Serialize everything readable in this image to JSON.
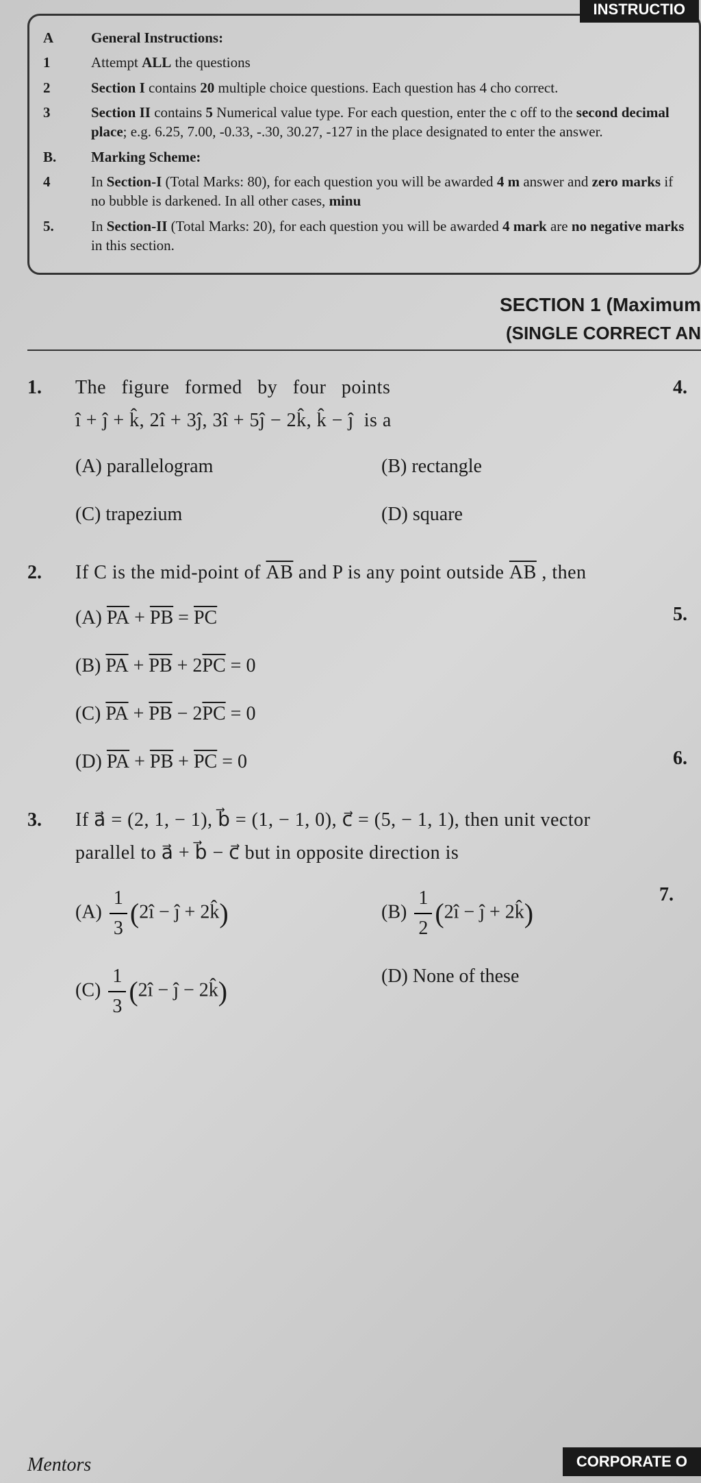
{
  "header": {
    "badge": "INSTRUCTIO"
  },
  "instructions": {
    "rows": [
      {
        "label": "A",
        "html": "<span class='bold'>General Instructions:</span>"
      },
      {
        "label": "1",
        "html": "Attempt <span class='bold'>ALL</span> the questions"
      },
      {
        "label": "2",
        "html": "<span class='bold'>Section I</span> contains <span class='bold'>20</span> multiple choice questions. Each question has 4 cho correct."
      },
      {
        "label": "3",
        "html": "<span class='bold'>Section II</span> contains <span class='bold'>5</span> Numerical value type. For each question, enter the c off to the <span class='bold'>second decimal place</span>; e.g. 6.25, 7.00, -0.33, -.30, 30.27, -127 in the place designated to enter the answer."
      },
      {
        "label": "B.",
        "html": "<span class='bold'>Marking Scheme:</span>"
      },
      {
        "label": "4",
        "html": "In <span class='bold'>Section-I</span> (Total Marks: 80), for each question you will be awarded <span class='bold'>4 m</span> answer and <span class='bold'>zero marks</span> if no bubble is darkened. In all other cases, <span class='bold'>minu</span>"
      },
      {
        "label": "5.",
        "html": "In <span class='bold'>Section-II</span> (Total Marks: 20), for each question you will be awarded <span class='bold'>4 mark</span> are <span class='bold'>no negative marks</span> in this section."
      }
    ]
  },
  "section": {
    "title": "SECTION 1 (Maximum",
    "subtitle": "(SINGLE CORRECT AN"
  },
  "questions": [
    {
      "num": "1.",
      "right": "4.",
      "stem_html": "The &nbsp; figure &nbsp; formed &nbsp; by &nbsp; four &nbsp; points<br><span class='math'>î + ĵ + k̂, 2î + 3ĵ, 3î + 5ĵ − 2k̂, k̂ − ĵ</span> &nbsp;is a",
      "options": [
        [
          {
            "label": "(A)",
            "text": "parallelogram"
          },
          {
            "label": "(B)",
            "text": "rectangle"
          }
        ],
        [
          {
            "label": "(C)",
            "text": "trapezium"
          },
          {
            "label": "(D)",
            "text": "square"
          }
        ]
      ]
    },
    {
      "num": "2.",
      "right": "",
      "stem_html": "If C is the mid-point of <span class='vec math'>AB</span> and P is any point outside <span class='vec math'>AB</span> , then",
      "side_nums": [
        "5.",
        "6."
      ],
      "options_full": [
        {
          "label": "(A)",
          "html": "<span class='vec math'>PA</span> + <span class='vec math'>PB</span> = <span class='vec math'>PC</span>"
        },
        {
          "label": "(B)",
          "html": "<span class='vec math'>PA</span> + <span class='vec math'>PB</span> + 2<span class='vec math'>PC</span> = 0"
        },
        {
          "label": "(C)",
          "html": "<span class='vec math'>PA</span> + <span class='vec math'>PB</span> − 2<span class='vec math'>PC</span> = 0"
        },
        {
          "label": "(D)",
          "html": "<span class='vec math'>PA</span> + <span class='vec math'>PB</span> + <span class='vec math'>PC</span> = 0"
        }
      ]
    },
    {
      "num": "3.",
      "right": "",
      "stem_html": "If <span class='math'>a⃗</span> = (2, 1, − 1), <span class='math'>b⃗</span> = (1, − 1, 0), <span class='math'>c⃗</span> = (5, − 1, 1), then unit vector parallel to <span class='math'>a⃗ + b⃗ − c⃗</span> but in opposite direction is",
      "side_nums": [
        "7."
      ],
      "options": [
        [
          {
            "label": "(A)",
            "html": "<span class='frac'><span class='num'>1</span><span class='den'>3</span></span><span class='big-paren'>(</span>2î − ĵ + 2k̂<span class='big-paren'>)</span>"
          },
          {
            "label": "(B)",
            "html": "<span class='frac'><span class='num'>1</span><span class='den'>2</span></span><span class='big-paren'>(</span>2î − ĵ + 2k̂<span class='big-paren'>)</span>"
          }
        ],
        [
          {
            "label": "(C)",
            "html": "<span class='frac'><span class='num'>1</span><span class='den'>3</span></span><span class='big-paren'>(</span>2î − ĵ − 2k̂<span class='big-paren'>)</span>"
          },
          {
            "label": "(D)",
            "html": "None of these"
          }
        ]
      ]
    }
  ],
  "footer": {
    "left": "Mentors",
    "right": "CORPORATE O"
  },
  "colors": {
    "bg": "#d0d0d0",
    "text": "#1a1a1a",
    "badge_bg": "#1a1a1a",
    "badge_fg": "#ffffff",
    "border": "#333333"
  },
  "typography": {
    "body_font": "Georgia, Times New Roman, serif",
    "heading_font": "Arial, sans-serif",
    "q_fontsize": 28,
    "instr_fontsize": 21,
    "header_fontsize": 28
  }
}
